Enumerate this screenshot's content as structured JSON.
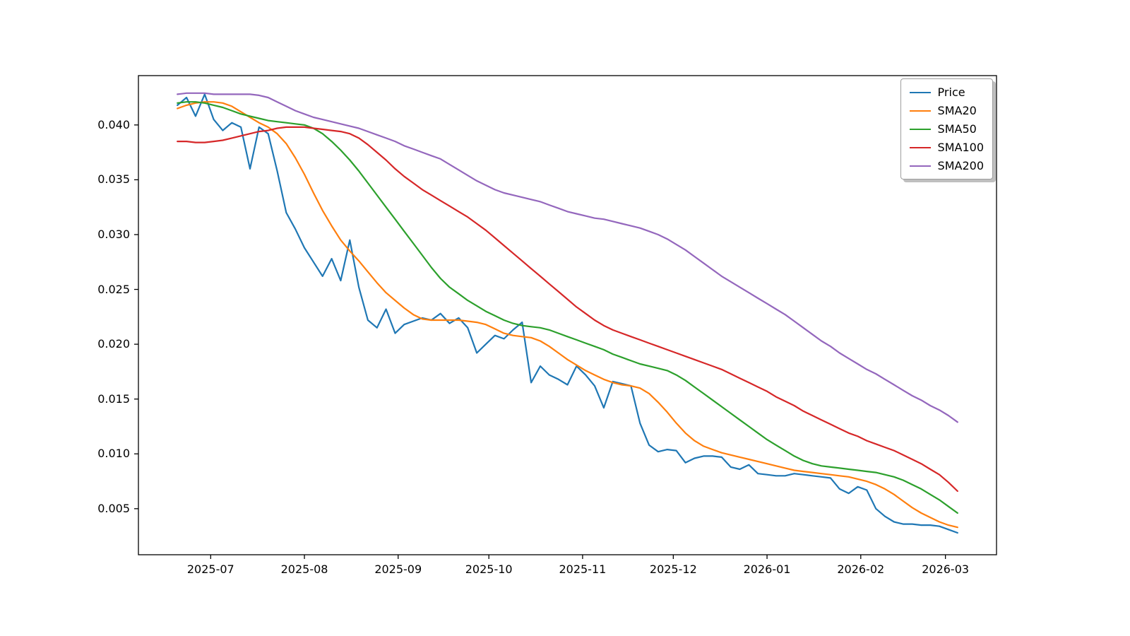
{
  "figure": {
    "background": "#ffffff"
  },
  "chart_data": {
    "type": "line",
    "title": "",
    "xlabel": "",
    "ylabel": "",
    "grid": false,
    "legend_position": "upper right",
    "spine_color": "#000000",
    "ylim": [
      0.0008,
      0.0445
    ],
    "x_tick_labels": [
      "2025-07",
      "2025-08",
      "2025-09",
      "2025-10",
      "2025-11",
      "2025-12",
      "2026-01",
      "2026-02",
      "2026-03"
    ],
    "x_tick_dates": [
      "2025-07-01",
      "2025-08-01",
      "2025-09-01",
      "2025-10-01",
      "2025-11-01",
      "2025-12-01",
      "2026-01-01",
      "2026-02-01",
      "2026-03-01"
    ],
    "y_tick_labels": [
      "0.005",
      "0.010",
      "0.015",
      "0.020",
      "0.025",
      "0.030",
      "0.035",
      "0.040"
    ],
    "y_tick_values": [
      0.005,
      0.01,
      0.015,
      0.02,
      0.025,
      0.03,
      0.035,
      0.04
    ],
    "x": [
      "2025-06-20",
      "2025-06-23",
      "2025-06-26",
      "2025-06-29",
      "2025-07-02",
      "2025-07-05",
      "2025-07-08",
      "2025-07-11",
      "2025-07-14",
      "2025-07-17",
      "2025-07-20",
      "2025-07-23",
      "2025-07-26",
      "2025-07-29",
      "2025-08-01",
      "2025-08-04",
      "2025-08-07",
      "2025-08-10",
      "2025-08-13",
      "2025-08-16",
      "2025-08-19",
      "2025-08-22",
      "2025-08-25",
      "2025-08-28",
      "2025-08-31",
      "2025-09-03",
      "2025-09-06",
      "2025-09-09",
      "2025-09-12",
      "2025-09-15",
      "2025-09-18",
      "2025-09-21",
      "2025-09-24",
      "2025-09-27",
      "2025-09-30",
      "2025-10-03",
      "2025-10-06",
      "2025-10-09",
      "2025-10-12",
      "2025-10-15",
      "2025-10-18",
      "2025-10-21",
      "2025-10-24",
      "2025-10-27",
      "2025-10-30",
      "2025-11-02",
      "2025-11-05",
      "2025-11-08",
      "2025-11-11",
      "2025-11-14",
      "2025-11-17",
      "2025-11-20",
      "2025-11-23",
      "2025-11-26",
      "2025-11-29",
      "2025-12-02",
      "2025-12-05",
      "2025-12-08",
      "2025-12-11",
      "2025-12-14",
      "2025-12-17",
      "2025-12-20",
      "2025-12-23",
      "2025-12-26",
      "2025-12-29",
      "2026-01-01",
      "2026-01-04",
      "2026-01-07",
      "2026-01-10",
      "2026-01-13",
      "2026-01-16",
      "2026-01-19",
      "2026-01-22",
      "2026-01-25",
      "2026-01-28",
      "2026-01-31",
      "2026-02-03",
      "2026-02-06",
      "2026-02-09",
      "2026-02-12",
      "2026-02-15",
      "2026-02-18",
      "2026-02-21",
      "2026-02-24",
      "2026-02-27",
      "2026-03-02",
      "2026-03-05"
    ],
    "series": [
      {
        "name": "Price",
        "color": "#1f77b4",
        "values": [
          0.0418,
          0.0425,
          0.0408,
          0.0428,
          0.0405,
          0.0395,
          0.0402,
          0.0398,
          0.036,
          0.0398,
          0.0392,
          0.0358,
          0.032,
          0.0305,
          0.0288,
          0.0275,
          0.0262,
          0.0278,
          0.0258,
          0.0295,
          0.0252,
          0.0222,
          0.0215,
          0.0232,
          0.021,
          0.0218,
          0.0221,
          0.0224,
          0.0222,
          0.0228,
          0.0219,
          0.0224,
          0.0215,
          0.0192,
          0.02,
          0.0208,
          0.0205,
          0.0213,
          0.022,
          0.0165,
          0.018,
          0.0172,
          0.0168,
          0.0163,
          0.018,
          0.0172,
          0.0162,
          0.0142,
          0.0166,
          0.0164,
          0.0162,
          0.0128,
          0.0108,
          0.0102,
          0.0104,
          0.0103,
          0.0092,
          0.0096,
          0.0098,
          0.0098,
          0.0097,
          0.0088,
          0.0086,
          0.009,
          0.0082,
          0.0081,
          0.008,
          0.008,
          0.0082,
          0.0081,
          0.008,
          0.0079,
          0.0078,
          0.0068,
          0.0064,
          0.007,
          0.0067,
          0.005,
          0.0043,
          0.0038,
          0.0036,
          0.0036,
          0.0035,
          0.0035,
          0.0034,
          0.0031,
          0.0028
        ]
      },
      {
        "name": "SMA20",
        "color": "#ff7f0e",
        "values": [
          0.0415,
          0.0418,
          0.042,
          0.0421,
          0.0421,
          0.042,
          0.0417,
          0.0412,
          0.0407,
          0.0402,
          0.0398,
          0.0392,
          0.0383,
          0.037,
          0.0355,
          0.0338,
          0.0322,
          0.0308,
          0.0295,
          0.0285,
          0.0276,
          0.0266,
          0.0256,
          0.0247,
          0.024,
          0.0233,
          0.0227,
          0.0223,
          0.0222,
          0.0222,
          0.0222,
          0.0222,
          0.0221,
          0.022,
          0.0218,
          0.0214,
          0.021,
          0.0208,
          0.0207,
          0.0206,
          0.0203,
          0.0198,
          0.0192,
          0.0186,
          0.0181,
          0.0176,
          0.0172,
          0.0168,
          0.0165,
          0.0163,
          0.0162,
          0.016,
          0.0155,
          0.0147,
          0.0138,
          0.0128,
          0.0119,
          0.0112,
          0.0107,
          0.0104,
          0.0101,
          0.0099,
          0.0097,
          0.0095,
          0.0093,
          0.0091,
          0.0089,
          0.0087,
          0.0085,
          0.0084,
          0.0083,
          0.0082,
          0.0081,
          0.008,
          0.0079,
          0.0077,
          0.0075,
          0.0072,
          0.0068,
          0.0063,
          0.0057,
          0.0051,
          0.0046,
          0.0042,
          0.0038,
          0.0035,
          0.0033
        ]
      },
      {
        "name": "SMA50",
        "color": "#2ca02c",
        "values": [
          0.042,
          0.0421,
          0.0421,
          0.042,
          0.0418,
          0.0416,
          0.0413,
          0.041,
          0.0408,
          0.0406,
          0.0404,
          0.0403,
          0.0402,
          0.0401,
          0.04,
          0.0397,
          0.0392,
          0.0385,
          0.0377,
          0.0368,
          0.0358,
          0.0347,
          0.0336,
          0.0325,
          0.0314,
          0.0303,
          0.0292,
          0.0281,
          0.027,
          0.026,
          0.0252,
          0.0246,
          0.024,
          0.0235,
          0.023,
          0.0226,
          0.0222,
          0.0219,
          0.0217,
          0.0216,
          0.0215,
          0.0213,
          0.021,
          0.0207,
          0.0204,
          0.0201,
          0.0198,
          0.0195,
          0.0191,
          0.0188,
          0.0185,
          0.0182,
          0.018,
          0.0178,
          0.0176,
          0.0172,
          0.0167,
          0.0161,
          0.0155,
          0.0149,
          0.0143,
          0.0137,
          0.0131,
          0.0125,
          0.0119,
          0.0113,
          0.0108,
          0.0103,
          0.0098,
          0.0094,
          0.0091,
          0.0089,
          0.0088,
          0.0087,
          0.0086,
          0.0085,
          0.0084,
          0.0083,
          0.0081,
          0.0079,
          0.0076,
          0.0072,
          0.0068,
          0.0063,
          0.0058,
          0.0052,
          0.0046
        ]
      },
      {
        "name": "SMA100",
        "color": "#d62728",
        "values": [
          0.0385,
          0.0385,
          0.0384,
          0.0384,
          0.0385,
          0.0386,
          0.0388,
          0.039,
          0.0392,
          0.0394,
          0.0395,
          0.0397,
          0.0398,
          0.0398,
          0.0398,
          0.0397,
          0.0396,
          0.0395,
          0.0394,
          0.0392,
          0.0388,
          0.0382,
          0.0375,
          0.0368,
          0.036,
          0.0353,
          0.0347,
          0.0341,
          0.0336,
          0.0331,
          0.0326,
          0.0321,
          0.0316,
          0.031,
          0.0304,
          0.0297,
          0.029,
          0.0283,
          0.0276,
          0.0269,
          0.0262,
          0.0255,
          0.0248,
          0.0241,
          0.0234,
          0.0228,
          0.0222,
          0.0217,
          0.0213,
          0.021,
          0.0207,
          0.0204,
          0.0201,
          0.0198,
          0.0195,
          0.0192,
          0.0189,
          0.0186,
          0.0183,
          0.018,
          0.0177,
          0.0173,
          0.0169,
          0.0165,
          0.0161,
          0.0157,
          0.0152,
          0.0148,
          0.0144,
          0.0139,
          0.0135,
          0.0131,
          0.0127,
          0.0123,
          0.0119,
          0.0116,
          0.0112,
          0.0109,
          0.0106,
          0.0103,
          0.0099,
          0.0095,
          0.0091,
          0.0086,
          0.0081,
          0.0074,
          0.0066
        ]
      },
      {
        "name": "SMA200",
        "color": "#9467bd",
        "values": [
          0.0428,
          0.0429,
          0.0429,
          0.0429,
          0.0428,
          0.0428,
          0.0428,
          0.0428,
          0.0428,
          0.0427,
          0.0425,
          0.0421,
          0.0417,
          0.0413,
          0.041,
          0.0407,
          0.0405,
          0.0403,
          0.0401,
          0.0399,
          0.0397,
          0.0394,
          0.0391,
          0.0388,
          0.0385,
          0.0381,
          0.0378,
          0.0375,
          0.0372,
          0.0369,
          0.0364,
          0.0359,
          0.0354,
          0.0349,
          0.0345,
          0.0341,
          0.0338,
          0.0336,
          0.0334,
          0.0332,
          0.033,
          0.0327,
          0.0324,
          0.0321,
          0.0319,
          0.0317,
          0.0315,
          0.0314,
          0.0312,
          0.031,
          0.0308,
          0.0306,
          0.0303,
          0.03,
          0.0296,
          0.0291,
          0.0286,
          0.028,
          0.0274,
          0.0268,
          0.0262,
          0.0257,
          0.0252,
          0.0247,
          0.0242,
          0.0237,
          0.0232,
          0.0227,
          0.0221,
          0.0215,
          0.0209,
          0.0203,
          0.0198,
          0.0192,
          0.0187,
          0.0182,
          0.0177,
          0.0173,
          0.0168,
          0.0163,
          0.0158,
          0.0153,
          0.0149,
          0.0144,
          0.014,
          0.0135,
          0.0129
        ]
      }
    ]
  }
}
